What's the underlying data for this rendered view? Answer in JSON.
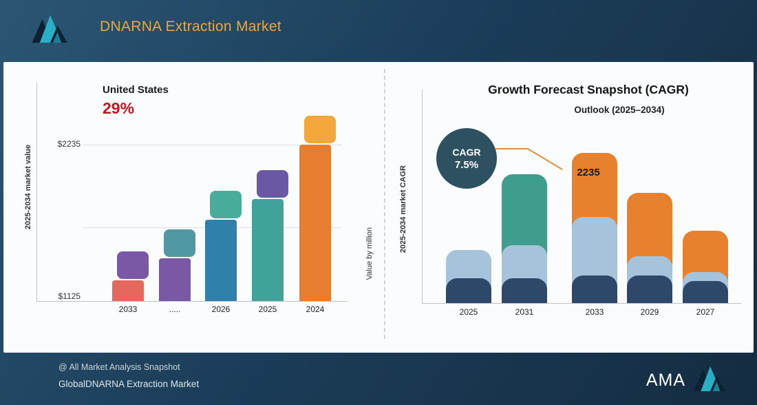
{
  "header": {
    "title": "DNARNA Extraction Market",
    "logo": "ama-mountain-logo"
  },
  "middle_label": "Value by million",
  "footer": {
    "line1": "@ All Market Analysis Snapshot",
    "line2": "GlobalDNARNA Extraction Market",
    "brand": "AMA"
  },
  "colors": {
    "header_bg": "#1c3e5a",
    "title_accent": "#eca63e",
    "highlight_red": "#c2151f",
    "badge_bg": "#2d5160"
  },
  "chart_data": [
    {
      "type": "bar",
      "region_label": "United States",
      "highlight": "29%",
      "ylabel": "2025-2034 market value",
      "ytick_labels": [
        "$2235",
        "$1125"
      ],
      "yticks": [
        2235,
        1125
      ],
      "ylim": [
        1125,
        2400
      ],
      "categories": [
        "2033",
        ".....",
        "2026",
        "2025",
        "2024"
      ],
      "values": [
        1270,
        1430,
        1700,
        1850,
        2235
      ],
      "bar_colors": [
        "#e4685e",
        "#7a58a5",
        "#2f81ab",
        "#3fa39b",
        "#e77d2e"
      ],
      "cap_colors": [
        "#7a58a5",
        "#4f98a4",
        "#49ad9c",
        "#6b58a5",
        "#f4a83b"
      ],
      "grid": "horizontal-light",
      "legend": "none"
    },
    {
      "type": "bar-stacked",
      "title": "Growth Forecast Snapshot (CAGR)",
      "subtitle": "Outlook (2025–2034)",
      "ylabel": "2025-2034 market CAGR",
      "badge": {
        "line1": "CAGR",
        "line2": "7.5%"
      },
      "bar_label": "2235",
      "labeled_category": "2033",
      "categories": [
        "2025",
        "2031",
        "2033",
        "2029",
        "2027"
      ],
      "values": [
        790,
        1920,
        2235,
        1640,
        1080
      ],
      "segments": {
        "bottom_color": "#2d4868",
        "mid_color": "#a6c3dc",
        "top_colors": [
          "#a6c3dc",
          "#3e9d8c",
          "#e8812d",
          "#e8812d",
          "#e8812d"
        ],
        "heights": [
          [
            36,
            41,
            0
          ],
          [
            36,
            48,
            103
          ],
          [
            40,
            85,
            93
          ],
          [
            40,
            28,
            92
          ],
          [
            32,
            13,
            60
          ]
        ]
      },
      "grid": "off",
      "legend": "none"
    }
  ]
}
